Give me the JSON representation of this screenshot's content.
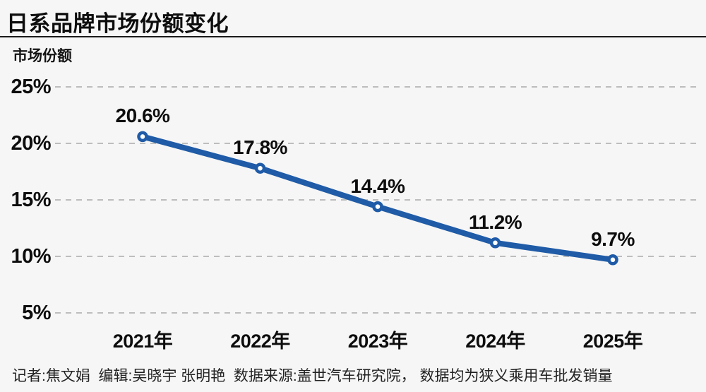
{
  "header": {
    "title": "日系品牌市场份额变化"
  },
  "chart_data": {
    "type": "line",
    "title": "日系品牌市场份额变化",
    "xlabel": "",
    "ylabel": "市场份额",
    "categories": [
      "2021年",
      "2022年",
      "2023年",
      "2024年",
      "2025年"
    ],
    "values": [
      20.6,
      17.8,
      14.4,
      11.2,
      9.7
    ],
    "value_labels": [
      "20.6%",
      "17.8%",
      "14.4%",
      "11.2%",
      "9.7%"
    ],
    "series": [
      {
        "name": "日系品牌市场份额",
        "values": [
          20.6,
          17.8,
          14.4,
          11.2,
          9.7
        ]
      }
    ],
    "yticks": [
      25,
      20,
      15,
      10,
      5
    ],
    "ytick_labels": [
      "25%",
      "20%",
      "15%",
      "10%",
      "5%"
    ],
    "ylim": [
      5,
      25
    ],
    "grid": "horizontal-dashed",
    "legend_position": "none",
    "colors": {
      "line": "#1f5ba7",
      "marker_fill": "#ffffff",
      "marker_stroke": "#1f5ba7",
      "gridline": "#bdbdbd",
      "background": "#f6f6f6",
      "text": "#0d0d0d"
    }
  },
  "footer": {
    "credits": "记者:焦文娟  编辑:吴晓宇 张明艳  数据来源:盖世汽车研究院， 数据均为狭义乘用车批发销量"
  }
}
